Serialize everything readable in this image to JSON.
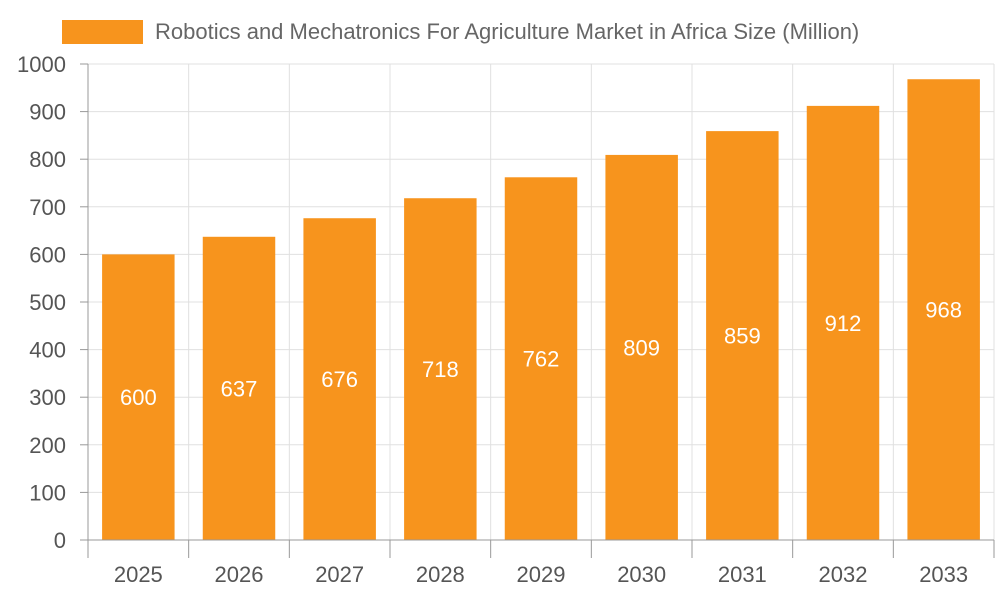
{
  "chart_data": {
    "type": "bar",
    "title": "",
    "xlabel": "",
    "ylabel": "",
    "categories": [
      "2025",
      "2026",
      "2027",
      "2028",
      "2029",
      "2030",
      "2031",
      "2032",
      "2033"
    ],
    "series": [
      {
        "name": "Robotics and Mechatronics For Agriculture Market in Africa Size (Million)",
        "values": [
          600,
          637,
          676,
          718,
          762,
          809,
          859,
          912,
          968
        ]
      }
    ],
    "ylim": [
      0,
      1000
    ],
    "yticks": [
      0,
      100,
      200,
      300,
      400,
      500,
      600,
      700,
      800,
      900,
      1000
    ],
    "grid": true,
    "legend": "top",
    "data_labels": "inside-center",
    "colors": {
      "bar": "#F7941D",
      "grid": "#e0e0e0",
      "axis": "#999999",
      "tick_text": "#555555",
      "label_text": "#ffffff"
    }
  }
}
